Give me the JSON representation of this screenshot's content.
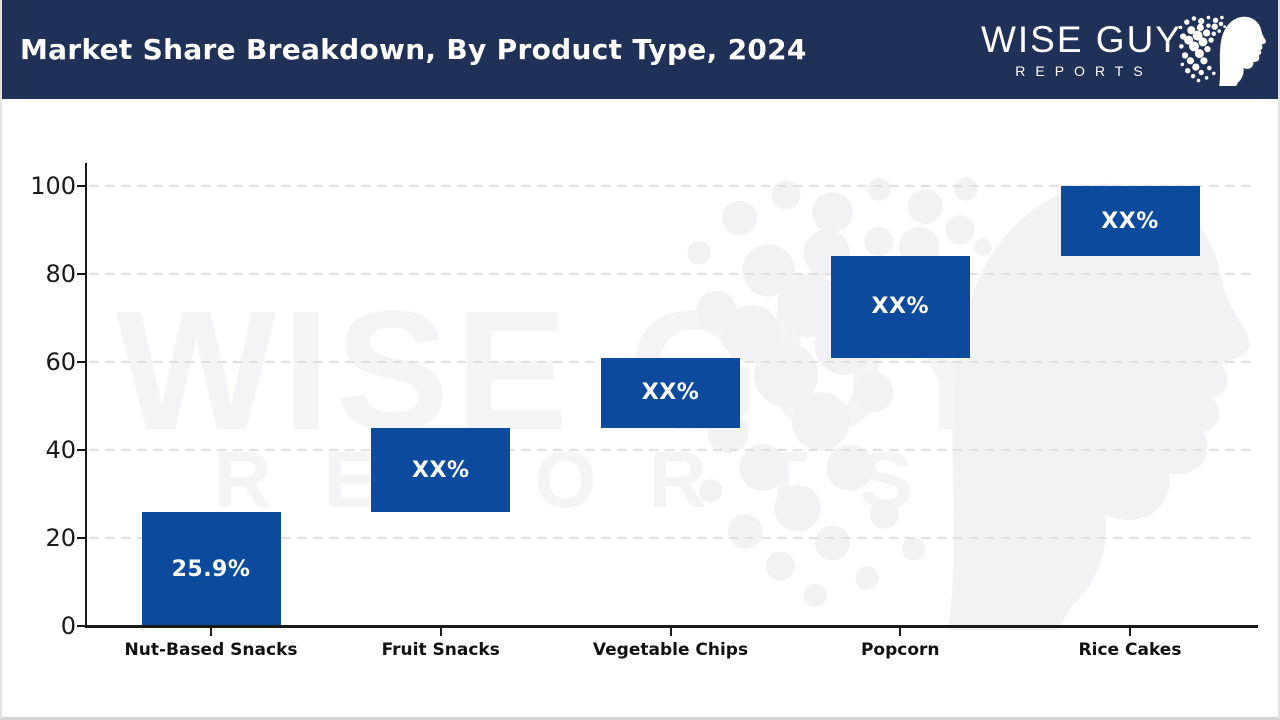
{
  "header": {
    "title": "Market Share Breakdown, By Product Type, 2024",
    "logo": {
      "line1": "WISE GUY",
      "line2": "REPORTS"
    }
  },
  "watermark": {
    "line1": "WISE GUY",
    "line2": "REPORTS"
  },
  "chart_data": {
    "type": "bar",
    "subtype": "waterfall",
    "title": "Market Share Breakdown, By Product Type, 2024",
    "categories": [
      "Nut-Based Snacks",
      "Fruit Snacks",
      "Vegetable Chips",
      "Popcorn",
      "Rice Cakes"
    ],
    "segments": [
      {
        "start": 0,
        "end": 25.9,
        "label": "25.9%"
      },
      {
        "start": 25.9,
        "end": 45,
        "label": "XX%"
      },
      {
        "start": 45,
        "end": 61,
        "label": "XX%"
      },
      {
        "start": 61,
        "end": 84,
        "label": "XX%"
      },
      {
        "start": 84,
        "end": 100,
        "label": "XX%"
      }
    ],
    "yticks": [
      0,
      20,
      40,
      60,
      80,
      100
    ],
    "ylim": [
      0,
      105
    ],
    "xlabel": "",
    "ylabel": "",
    "grid": "horizontal-dashed",
    "legend": "none",
    "bar_color": "#0c4a9e",
    "bar_label_color": "#ffffff",
    "header_bg_color": "#203158",
    "gridline_color": "#e0e0e0"
  }
}
